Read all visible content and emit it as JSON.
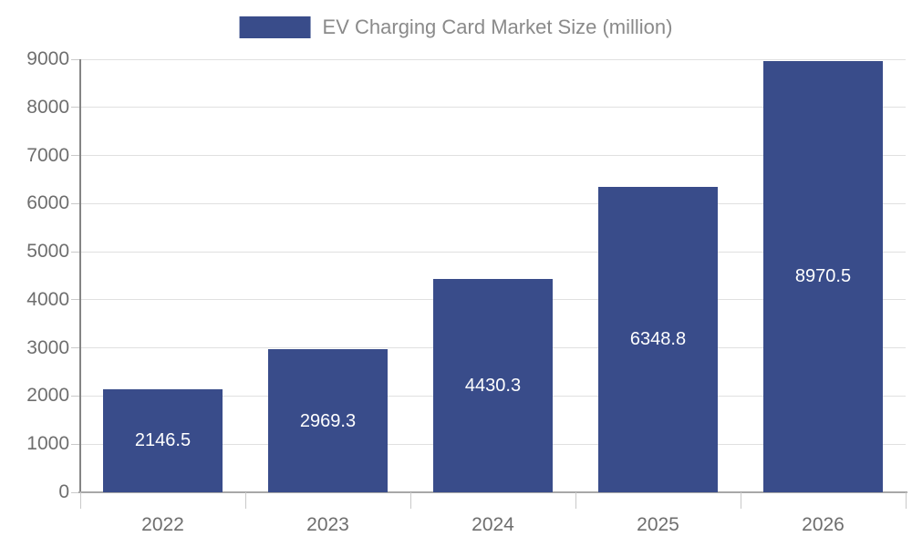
{
  "chart_data": {
    "type": "bar",
    "title": "EV Charging Card Market Size (million)",
    "series_name": "EV Charging Card Market Size (million)",
    "categories": [
      "2022",
      "2023",
      "2024",
      "2025",
      "2026"
    ],
    "values": [
      2146.5,
      2969.3,
      4430.3,
      6348.8,
      8970.5
    ],
    "xlabel": "",
    "ylabel": "",
    "ylim": [
      0,
      9000
    ],
    "ytick_step": 1000,
    "ytick_labels": [
      "0",
      "1000",
      "2000",
      "3000",
      "4000",
      "5000",
      "6000",
      "7000",
      "8000",
      "9000"
    ],
    "grid": true,
    "legend_position": "top-center",
    "bar_color": "#394C8A",
    "value_label_color": "#ffffff",
    "axis_text_color": "#6e6e6e",
    "legend_text_color": "#8a8a8a"
  },
  "legend": {
    "label": "EV Charging Card Market Size (million)"
  }
}
